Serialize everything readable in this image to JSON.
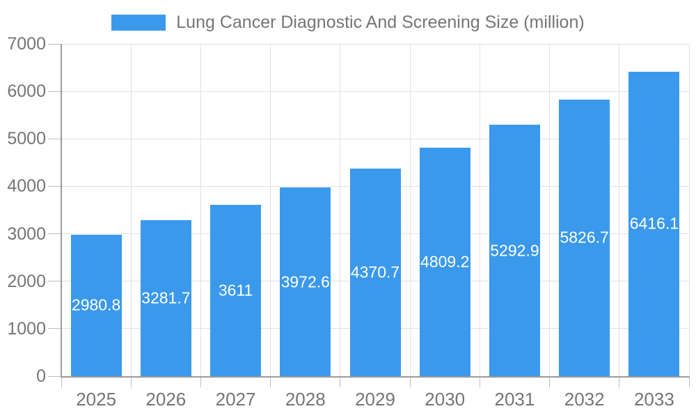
{
  "chart_data": {
    "type": "bar",
    "title": "Lung Cancer Diagnostic And Screening Size (million)",
    "categories": [
      "2025",
      "2026",
      "2027",
      "2028",
      "2029",
      "2030",
      "2031",
      "2032",
      "2033"
    ],
    "values": [
      2980.8,
      3281.7,
      3611,
      3972.6,
      4370.7,
      4809.2,
      5292.9,
      5826.7,
      6416.1
    ],
    "bar_labels": [
      "2980.8",
      "3281.7",
      "3611",
      "3972.6",
      "4370.7",
      "4809.2",
      "5292.9",
      "5826.7",
      "6416.1"
    ],
    "xlabel": "",
    "ylabel": "",
    "ylim": [
      0,
      7000
    ],
    "yticks": [
      0,
      1000,
      2000,
      3000,
      4000,
      5000,
      6000,
      7000
    ],
    "grid": true,
    "legend_position": "top",
    "colors": {
      "bar": "#3b99ec",
      "grid": "#e0e0e0",
      "axis": "#9a9a9a",
      "tick": "#bdbdbd",
      "text": "#757575",
      "value_label": "#ffffff",
      "background": "#ffffff"
    }
  }
}
